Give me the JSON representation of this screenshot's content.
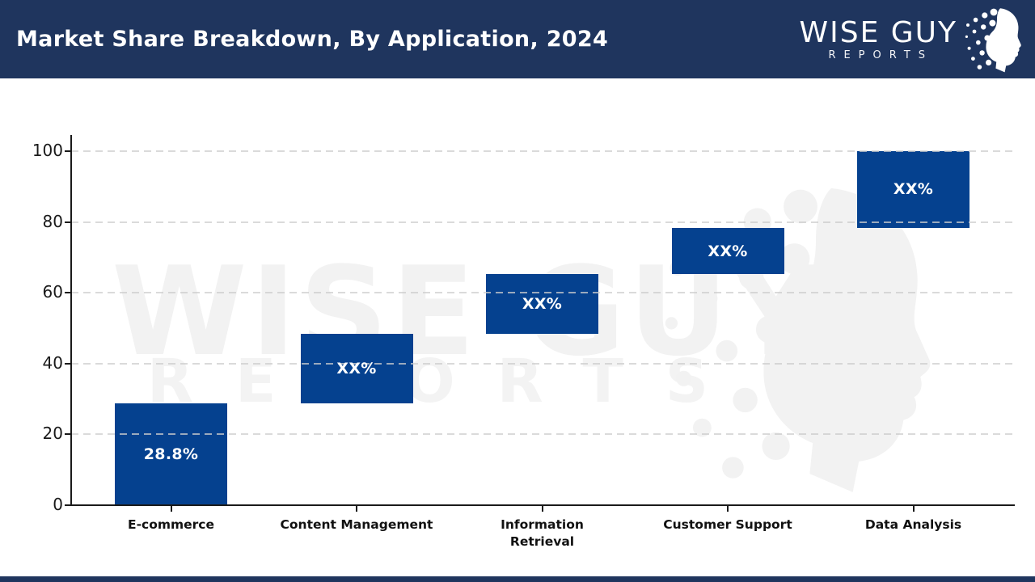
{
  "header": {
    "title": "Market Share Breakdown, By Application, 2024",
    "logo_line1": "WISE GUY",
    "logo_line2": "REPORTS"
  },
  "watermark": {
    "line1": "WISE GUY",
    "line2": "REPORTS"
  },
  "colors": {
    "header_bg": "#1F355E",
    "footer_bg": "#1F355E",
    "bar": "#05418F",
    "bar_label": "#ffffff",
    "axis": "#1a1a1a",
    "grid": "#d9d9d9",
    "watermark": "#f2f2f2"
  },
  "chart_data": {
    "type": "bar",
    "subtype": "waterfall",
    "title": "Market Share Breakdown, By Application, 2024",
    "categories": [
      "E-commerce",
      "Content Management",
      "Information\nRetrieval",
      "Customer Support",
      "Data Analysis"
    ],
    "segments": [
      {
        "category": "E-commerce",
        "start": 0,
        "end": 28.8,
        "label": "28.8%"
      },
      {
        "category": "Content Management",
        "start": 28.8,
        "end": 48.3,
        "label": "XX%"
      },
      {
        "category": "Information Retrieval",
        "start": 48.3,
        "end": 65.2,
        "label": "XX%"
      },
      {
        "category": "Customer Support",
        "start": 65.2,
        "end": 78.4,
        "label": "XX%"
      },
      {
        "category": "Data Analysis",
        "start": 78.4,
        "end": 100,
        "label": "XX%"
      }
    ],
    "yticks": [
      0,
      20,
      40,
      60,
      80,
      100
    ],
    "ylim": [
      0,
      105
    ],
    "xlabel": "",
    "ylabel": "",
    "grid": "horizontal dashed, drawn over bars",
    "legend": "none"
  }
}
